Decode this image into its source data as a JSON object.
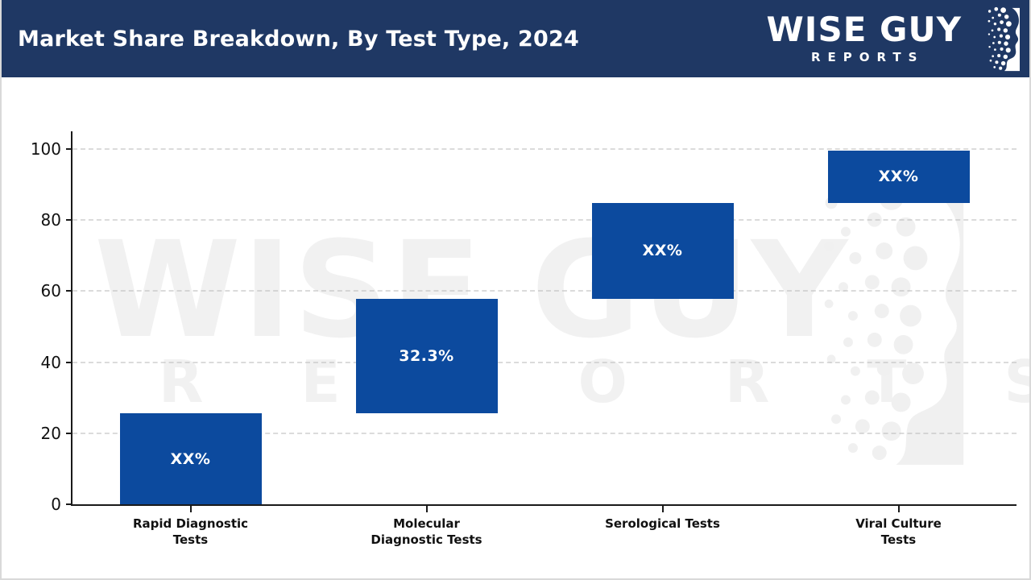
{
  "header": {
    "title": "Market Share Breakdown, By Test Type, 2024",
    "logo_main": "WISE GUY",
    "logo_sub": "REPORTS",
    "bg_color": "#1f3864"
  },
  "watermark": {
    "line1": "WISE GUY",
    "line2": "REPORTS",
    "color": "#f1f1f1"
  },
  "chart_data": {
    "type": "bar",
    "subtype": "waterfall",
    "title": "Market Share Breakdown, By Test Type, 2024",
    "categories": [
      "Rapid Diagnostic\nTests",
      "Molecular\nDiagnostic Tests",
      "Serological Tests",
      "Viral Culture\nTests"
    ],
    "bars": [
      {
        "label": "XX%",
        "start": 0,
        "end": 25.6
      },
      {
        "label": "32.3%",
        "start": 25.6,
        "end": 57.9
      },
      {
        "label": "XX%",
        "start": 57.9,
        "end": 84.9
      },
      {
        "label": "XX%",
        "start": 84.9,
        "end": 99.5
      }
    ],
    "y_ticks": [
      0,
      20,
      40,
      60,
      80,
      100
    ],
    "ylim": [
      0,
      105
    ],
    "xlabel": "",
    "ylabel": "",
    "legend": "none",
    "grid": "dashed-horizontal",
    "bar_color": "#0c4a9e",
    "axis_color": "#1a1a1a"
  }
}
